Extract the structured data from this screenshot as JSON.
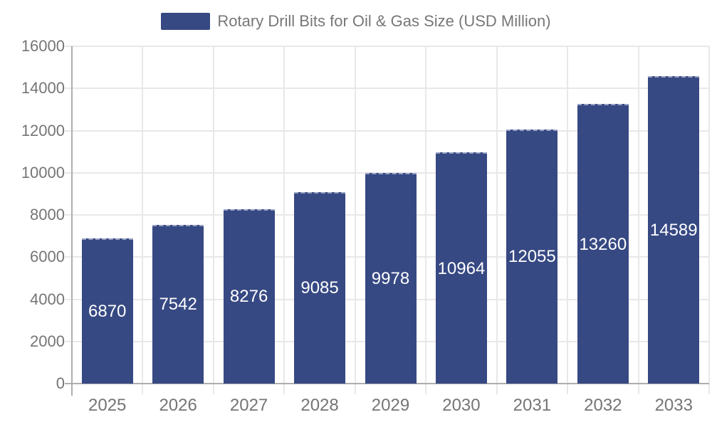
{
  "chart_data": {
    "type": "bar",
    "title": "Rotary Drill Bits for Oil & Gas Size (USD Million)",
    "categories": [
      "2025",
      "2026",
      "2027",
      "2028",
      "2029",
      "2030",
      "2031",
      "2032",
      "2033"
    ],
    "values": [
      6870,
      7542,
      8276,
      9085,
      9978,
      10964,
      12055,
      13260,
      14589
    ],
    "xlabel": "",
    "ylabel": "",
    "ylim": [
      0,
      16000
    ],
    "yticks": [
      0,
      2000,
      4000,
      6000,
      8000,
      10000,
      12000,
      14000,
      16000
    ],
    "grid": true,
    "legend_position": "top",
    "value_labels": "inside-center"
  },
  "colors": {
    "bar": "#374983",
    "bar_top_dash": "#9aa3c4",
    "grid": "#e8e8e8",
    "axis": "#aeaeae",
    "tick_text": "#757575",
    "title_text": "#777777",
    "value_label": "#ffffff",
    "background": "#ffffff"
  }
}
